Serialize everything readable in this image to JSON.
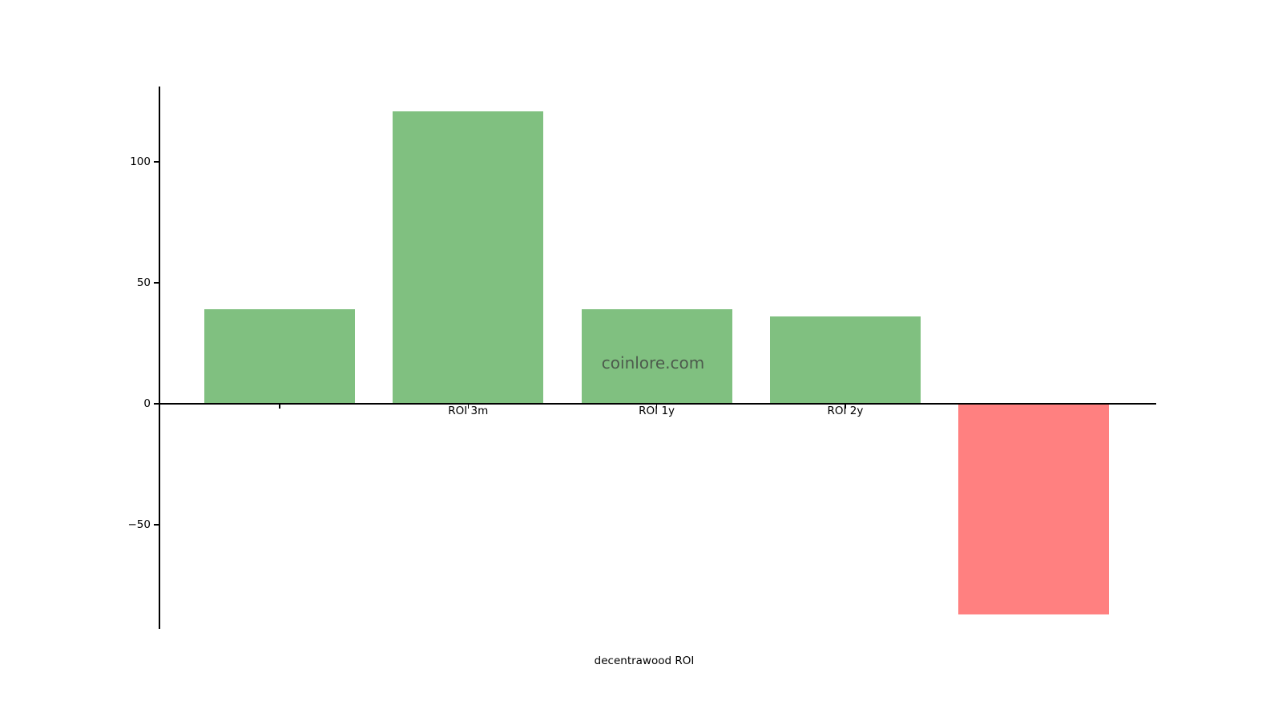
{
  "chart_data": {
    "type": "bar",
    "title": "",
    "xlabel": "decentrawood ROI",
    "ylabel": "",
    "categories": [
      "",
      "ROI 3m",
      "ROI 1y",
      "ROI 2y",
      ""
    ],
    "values": [
      39,
      121,
      39,
      36,
      -87
    ],
    "bar_colors": [
      "#80c080",
      "#80c080",
      "#80c080",
      "#80c080",
      "#ff8080"
    ],
    "yticks": [
      100,
      50,
      0,
      -50
    ],
    "ytick_labels": [
      "100",
      "50",
      "0",
      "−50"
    ],
    "ylim": [
      -93,
      131
    ],
    "grid": false,
    "legend": null,
    "watermark": "coinlore.com",
    "colors": {
      "positive_bar": "#80c080",
      "negative_bar": "#ff8080",
      "axis": "#000000",
      "text": "#000000",
      "watermark": "#3e3e3e",
      "background": "#ffffff"
    }
  }
}
